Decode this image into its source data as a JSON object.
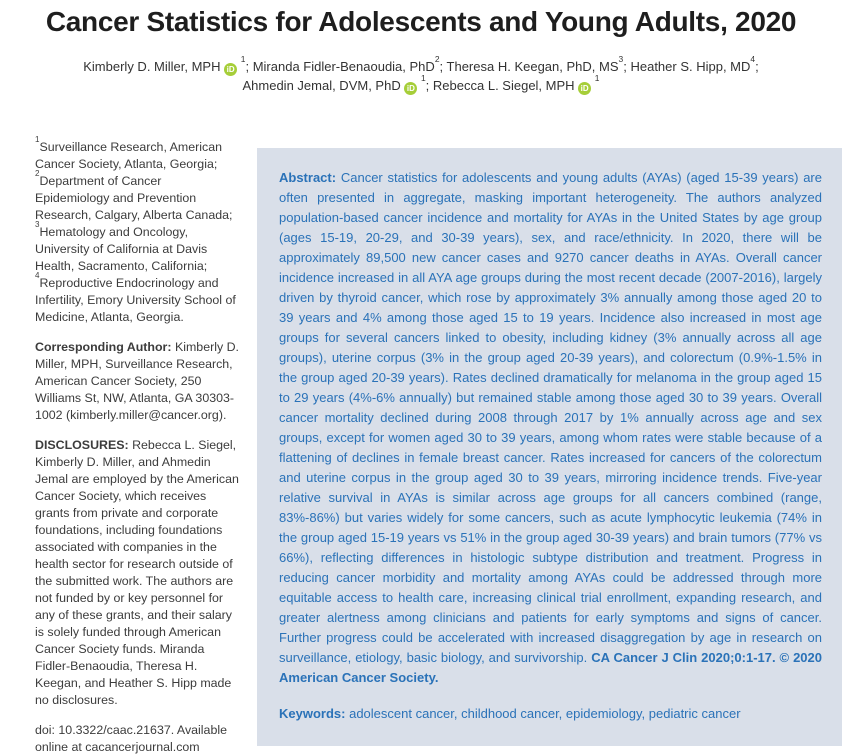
{
  "title": "Cancer Statistics for Adolescents and Young Adults, 2020",
  "icons": {
    "orcid_glyph": "iD"
  },
  "colors": {
    "abstract_bg": "#d9dfe9",
    "abstract_text": "#2a72b8",
    "orcid_green": "#a6ce39"
  },
  "authors": {
    "line1": [
      {
        "name": "Kimberly D. Miller, MPH",
        "sup": "1",
        "sep": ";"
      },
      {
        "name": "Miranda Fidler-Benaoudia, PhD",
        "sup": "2",
        "sep": ";"
      },
      {
        "name": "Theresa H. Keegan, PhD, MS",
        "sup": "3",
        "sep": ";"
      },
      {
        "name": "Heather S. Hipp, MD",
        "sup": "4",
        "sep": ";"
      }
    ],
    "line2": [
      {
        "name": "Ahmedin Jemal, DVM, PhD",
        "sup": "1",
        "sep": ";"
      },
      {
        "name": "Rebecca L. Siegel, MPH",
        "sup": "1",
        "sep": ""
      }
    ]
  },
  "sidebar": {
    "affiliations": [
      {
        "sup": "1",
        "text": "Surveillance Research, American Cancer Society, Atlanta, Georgia;"
      },
      {
        "sup": "2",
        "text": "Department of Cancer Epidemiology and Prevention Research, Calgary, Alberta Canada;"
      },
      {
        "sup": "3",
        "text": "Hematology and Oncology, University of California at Davis Health, Sacramento, California;"
      },
      {
        "sup": "4",
        "text": "Reproductive Endocrinology and Infertility, Emory University School of Medicine, Atlanta, Georgia."
      }
    ],
    "corresponding": {
      "label": "Corresponding Author:",
      "text": "Kimberly D. Miller, MPH, Surveillance Research, American Cancer Society, 250 Williams St, NW, Atlanta, GA 30303-1002 (kimberly.miller@cancer.org)."
    },
    "disclosures": {
      "label": "DISCLOSURES:",
      "text": "Rebecca L. Siegel, Kimberly D. Miller, and Ahmedin Jemal are employed by the American Cancer Society, which receives grants from private and corporate foundations, including foundations associated with companies in the health sector for research outside of the submitted work. The authors are not funded by or key personnel for any of these grants, and their salary is solely funded through American Cancer Society funds. Miranda Fidler-Benaoudia, Theresa H. Keegan, and Heather S. Hipp made no disclosures."
    },
    "doi": "doi: 10.3322/caac.21637. Available online at cacancerjournal.com"
  },
  "abstract": {
    "label": "Abstract:",
    "body": "Cancer statistics for adolescents and young adults (AYAs) (aged 15-39 years) are often presented in aggregate, masking important heterogeneity. The authors analyzed population-based cancer incidence and mortality for AYAs in the United States by age group (ages 15-19, 20-29, and 30-39 years), sex, and race/ethnicity. In 2020, there will be approximately 89,500 new cancer cases and 9270 cancer deaths in AYAs. Overall cancer incidence increased in all AYA age groups during the most recent decade (2007-2016), largely driven by thyroid cancer, which rose by approximately 3% annually among those aged 20 to 39 years and 4% among those aged 15 to 19 years. Incidence also increased in most age groups for several cancers linked to obesity, including kidney (3% annually across all age groups), uterine corpus (3% in the group aged 20-39 years), and colorectum (0.9%-1.5% in the group aged 20-39 years). Rates declined dramatically for melanoma in the group aged 15 to 29 years (4%-6% annually) but remained stable among those aged 30 to 39 years. Overall cancer mortality declined during 2008 through 2017 by 1% annually across age and sex groups, except for women aged 30 to 39 years, among whom rates were stable because of a flattening of declines in female breast cancer. Rates increased for cancers of the colorectum and uterine corpus in the group aged 30 to 39 years, mirroring incidence trends. Five-year relative survival in AYAs is similar across age groups for all cancers combined (range, 83%-86%) but varies widely for some cancers, such as acute lymphocytic leukemia (74% in the group aged 15-19 years vs 51% in the group aged 30-39 years) and brain tumors (77% vs 66%), reflecting differences in histologic subtype distribution and treatment. Progress in reducing cancer morbidity and mortality among AYAs could be addressed through more equitable access to health care, increasing clinical trial enrollment, expanding research, and greater alertness among clinicians and patients for early symptoms and signs of cancer. Further progress could be accelerated with increased disaggregation by age in research on surveillance, etiology, basic biology, and survivorship.",
    "citation": "CA Cancer J Clin 2020;0:1-17. © 2020 American Cancer Society.",
    "keywords_label": "Keywords:",
    "keywords": "adolescent cancer, childhood cancer, epidemiology, pediatric cancer"
  }
}
